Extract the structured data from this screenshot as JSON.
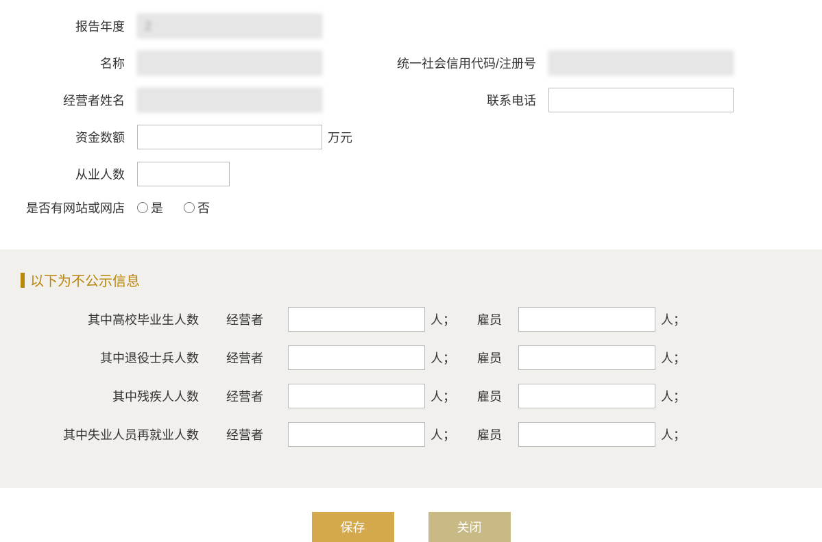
{
  "form": {
    "report_year": {
      "label": "报告年度",
      "value": "2"
    },
    "name": {
      "label": "名称",
      "value": ""
    },
    "credit_code": {
      "label": "统一社会信用代码/注册号",
      "value": ""
    },
    "operator_name": {
      "label": "经营者姓名",
      "value": ""
    },
    "phone": {
      "label": "联系电话",
      "value": ""
    },
    "capital": {
      "label": "资金数额",
      "value": "",
      "unit": "万元"
    },
    "employees": {
      "label": "从业人数",
      "value": ""
    },
    "has_website": {
      "label": "是否有网站或网店",
      "yes": "是",
      "no": "否"
    }
  },
  "private_section": {
    "title": "以下为不公示信息",
    "operator_label": "经营者",
    "employee_label": "雇员",
    "unit_person": "人；",
    "rows": [
      {
        "label": "其中高校毕业生人数"
      },
      {
        "label": "其中退役士兵人数"
      },
      {
        "label": "其中残疾人人数"
      },
      {
        "label": "其中失业人员再就业人数"
      }
    ]
  },
  "buttons": {
    "save": "保存",
    "close": "关闭"
  },
  "colors": {
    "accent": "#b8860b",
    "btn_save": "#d4a94e",
    "btn_close": "#c9ba85",
    "readonly_bg": "#e6e6e6",
    "section_bg": "#f2f0ed"
  }
}
